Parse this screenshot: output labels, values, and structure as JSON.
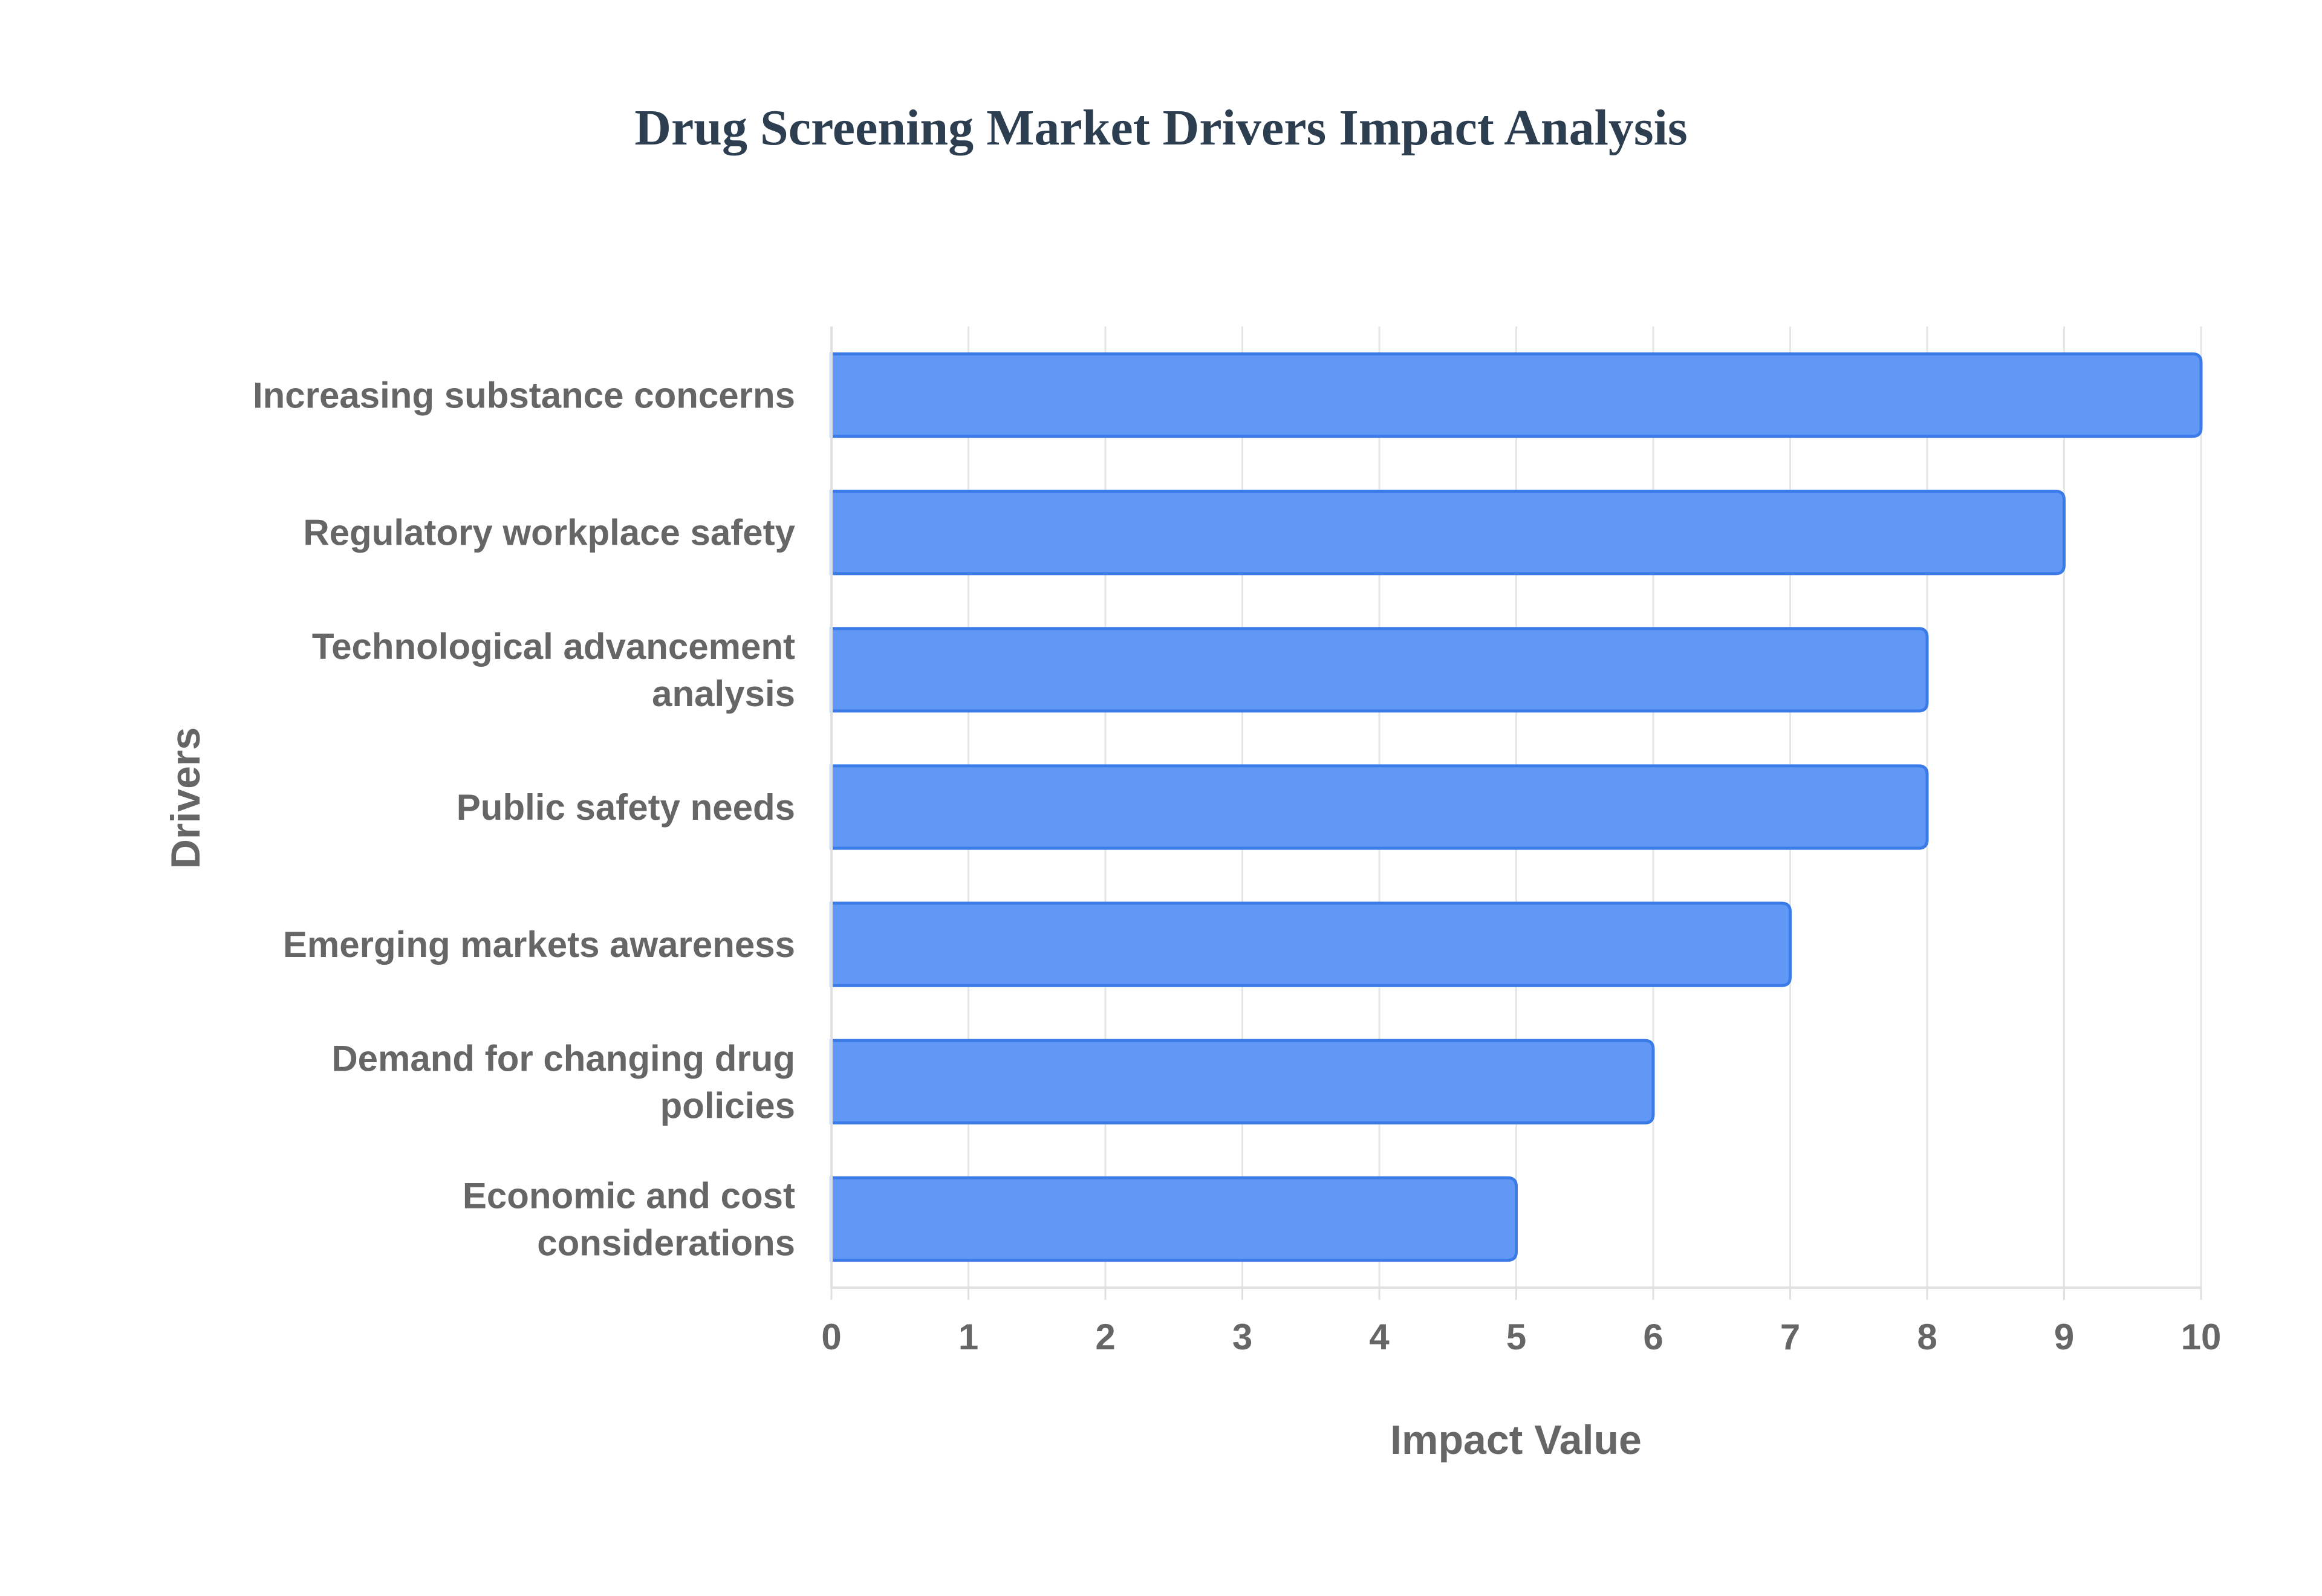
{
  "chart_data": {
    "type": "bar",
    "orientation": "horizontal",
    "title": "Drug Screening Market Drivers Impact Analysis",
    "xlabel": "Impact Value",
    "ylabel": "Drivers",
    "xlim": [
      0,
      10
    ],
    "x_ticks": [
      "0",
      "1",
      "2",
      "3",
      "4",
      "5",
      "6",
      "7",
      "8",
      "9",
      "10"
    ],
    "categories": [
      "Increasing substance concerns",
      "Regulatory workplace safety",
      "Technological advancement analysis",
      "Public safety needs",
      "Emerging markets awareness",
      "Demand for changing drug policies",
      "Economic and cost considerations"
    ],
    "category_lines": [
      [
        "Increasing substance concerns"
      ],
      [
        "Regulatory workplace safety"
      ],
      [
        "Technological advancement",
        "analysis"
      ],
      [
        "Public safety needs"
      ],
      [
        "Emerging markets awareness"
      ],
      [
        "Demand for changing drug",
        "policies"
      ],
      [
        "Economic and cost",
        "considerations"
      ]
    ],
    "values": [
      10,
      9,
      8,
      8,
      7,
      6,
      5
    ],
    "grid": true,
    "legend": "none",
    "bar_color": "#6198f5",
    "bar_border_color": "#3b7be8"
  }
}
